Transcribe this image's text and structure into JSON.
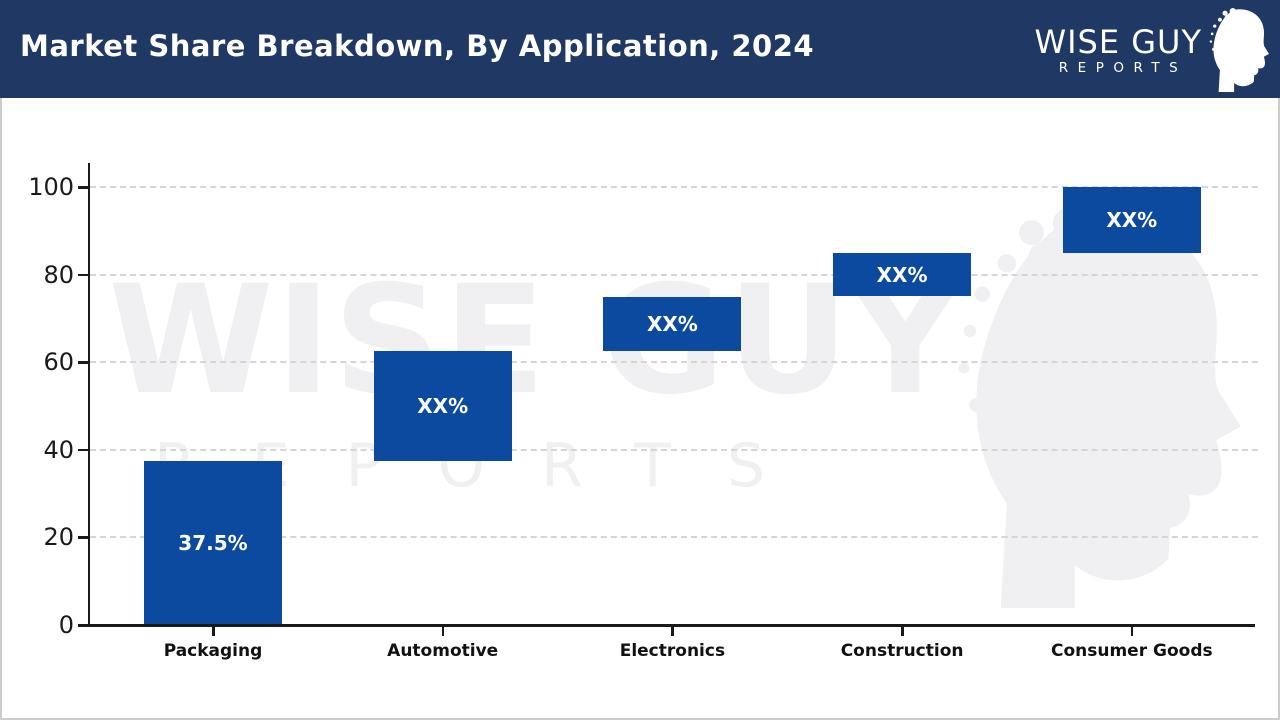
{
  "header": {
    "title": "Market Share Breakdown, By Application, 2024",
    "logo": {
      "primary": "WISE GUY",
      "secondary": "REPORTS"
    }
  },
  "watermark": {
    "primary": "WISE GUY",
    "secondary": "REPORTS"
  },
  "chart_data": {
    "type": "bar",
    "subtype": "waterfall",
    "title": "Market Share Breakdown, By Application, 2024",
    "categories": [
      "Packaging",
      "Automotive",
      "Electronics",
      "Construction",
      "Consumer Goods"
    ],
    "segments": [
      {
        "category": "Packaging",
        "start": 0,
        "end": 37.5,
        "label": "37.5%"
      },
      {
        "category": "Automotive",
        "start": 37.5,
        "end": 62.5,
        "label": "XX%"
      },
      {
        "category": "Electronics",
        "start": 62.5,
        "end": 75,
        "label": "XX%"
      },
      {
        "category": "Construction",
        "start": 75,
        "end": 85,
        "label": "XX%"
      },
      {
        "category": "Consumer Goods",
        "start": 85,
        "end": 100,
        "label": "XX%"
      }
    ],
    "y_ticks": [
      0,
      20,
      40,
      60,
      80,
      100
    ],
    "ylim": [
      0,
      100
    ],
    "xlabel": "",
    "ylabel": "",
    "grid": "horizontal-dashed",
    "legend": "none",
    "bar_color": "#0b4a9e",
    "bar_label_color": "#ffffff"
  },
  "colors": {
    "header_bg": "#1f3864",
    "bar": "#0b4a9e",
    "grid": "#d5d5d5",
    "axis": "#1a1a1a",
    "watermark": "#f0f0f2",
    "panel_border": "#cccccc"
  }
}
